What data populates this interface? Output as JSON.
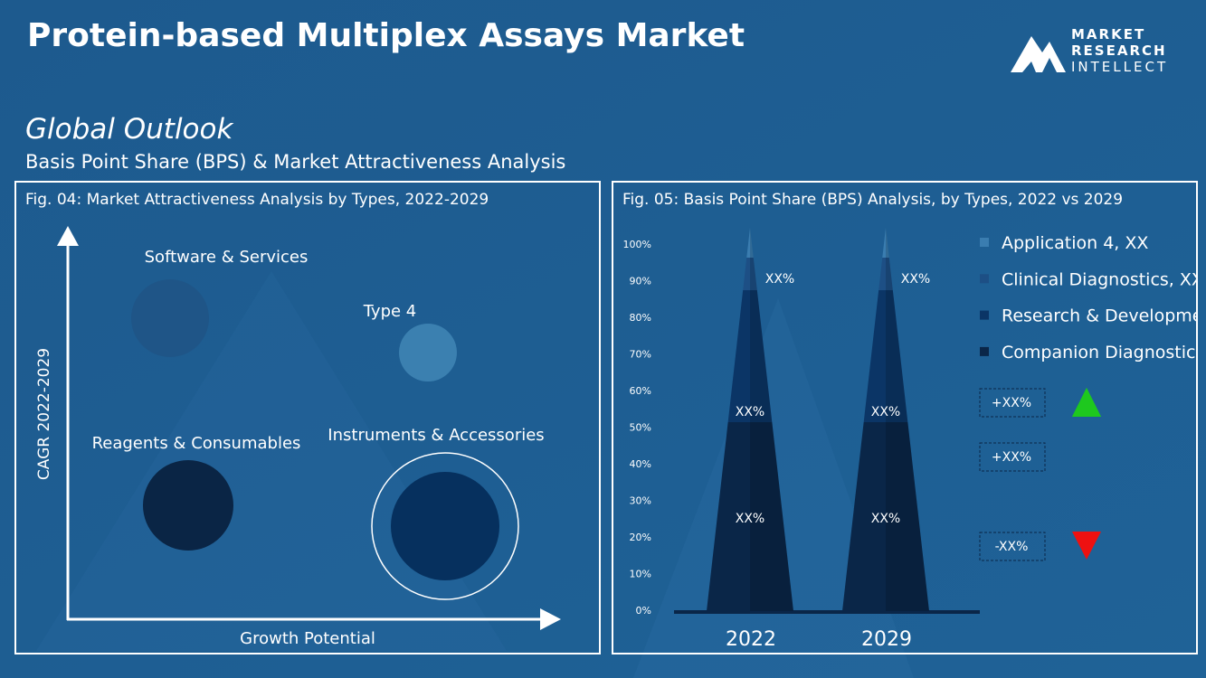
{
  "header": {
    "title": "Protein-based Multiplex Assays Market",
    "logo": [
      "MARKET",
      "RESEARCH",
      "INTELLECT"
    ],
    "outlook": "Global Outlook",
    "subtitle": "Basis Point Share (BPS) & Market Attractiveness  Analysis"
  },
  "fig04": {
    "title": "Fig. 04: Market Attractiveness Analysis by Types, 2022-2029",
    "y_axis_label": "CAGR 2022-2029",
    "x_axis_label": "Growth Potential",
    "bubbles": [
      "Software & Services",
      "Type 4",
      "Reagents & Consumables",
      "Instruments & Accessories"
    ]
  },
  "fig05": {
    "title": "Fig. 05: Basis Point Share (BPS) Analysis, by Types, 2022 vs 2029",
    "yticks": [
      "100%",
      "90%",
      "80%",
      "70%",
      "60%",
      "50%",
      "40%",
      "30%",
      "20%",
      "10%",
      "0%"
    ],
    "years": [
      "2022",
      "2029"
    ],
    "segment_labels": [
      [
        "XX%",
        "XX%",
        "XX%"
      ],
      [
        "XX%",
        "XX%",
        "XX%"
      ]
    ],
    "legend": [
      "Application 4, XX",
      "Clinical Diagnostics, XX",
      "Research & Development",
      "Companion Diagnostics,"
    ],
    "changes": [
      "+XX%",
      "+XX%",
      "-XX%"
    ]
  }
}
